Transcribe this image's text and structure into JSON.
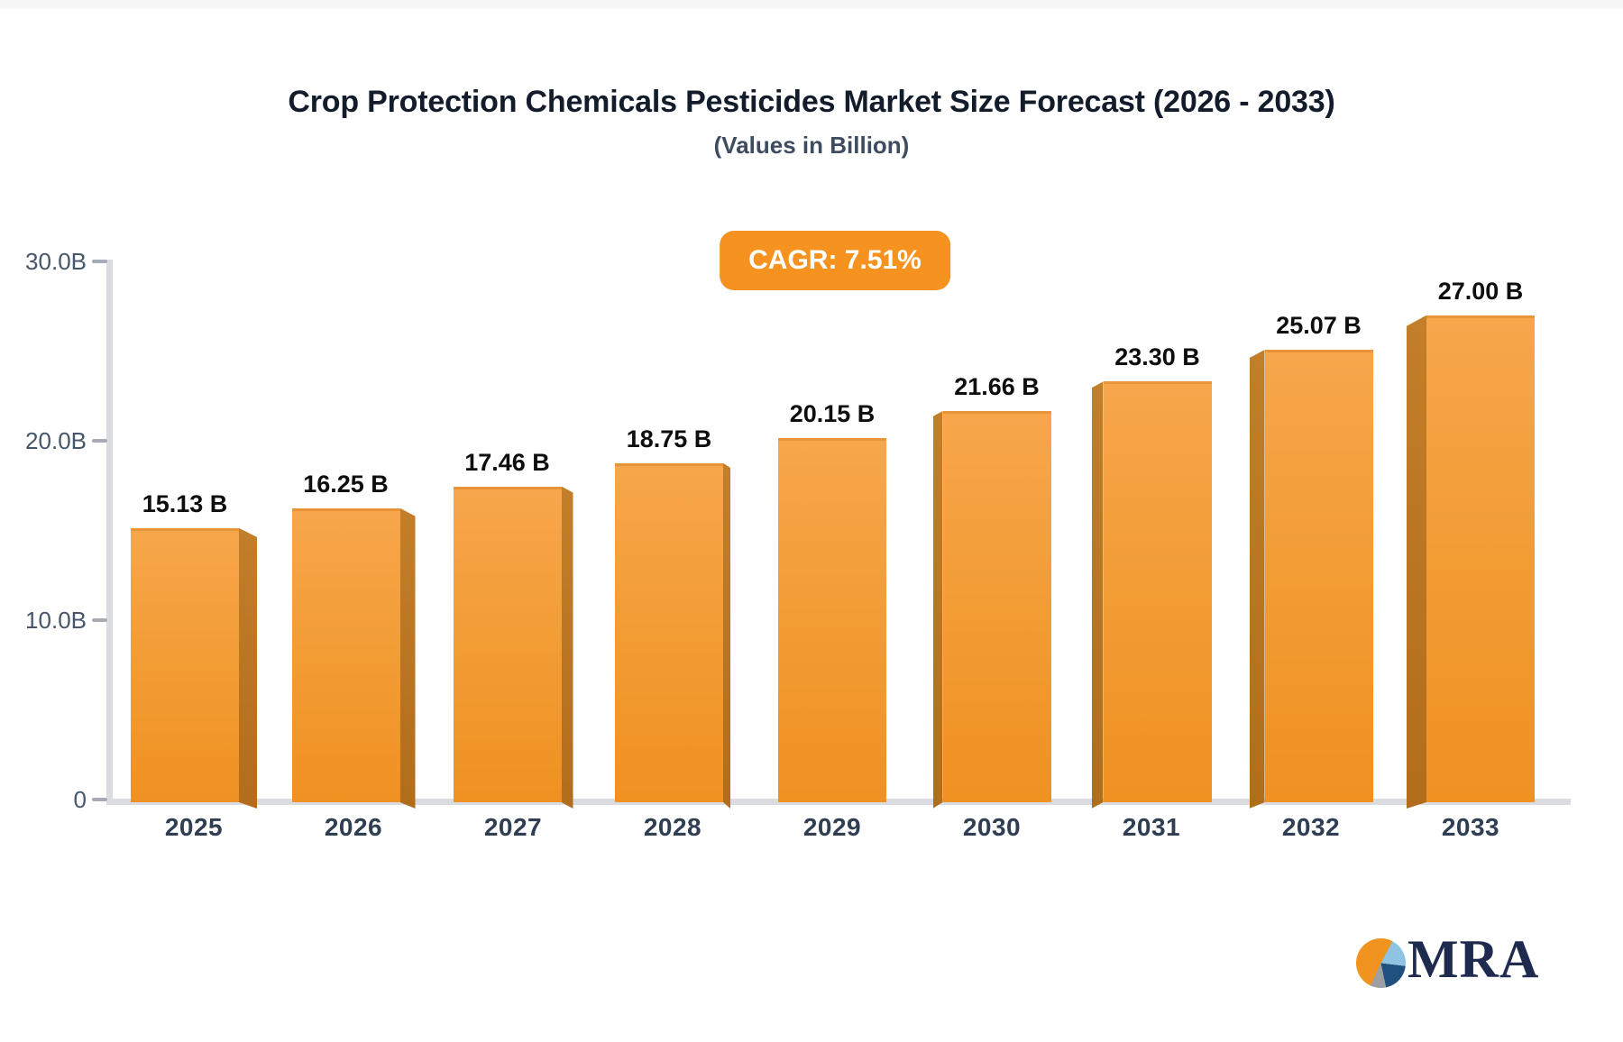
{
  "title": "Crop Protection Chemicals Pesticides Market Size Forecast (2026 - 2033)",
  "subtitle": "(Values in Billion)",
  "badge": "CAGR: 7.51%",
  "chart_data": {
    "type": "bar",
    "title": "Crop Protection Chemicals Pesticides Market Size Forecast (2026 - 2033)",
    "subtitle": "(Values in Billion)",
    "cagr_badge": "CAGR: 7.51%",
    "categories": [
      "2025",
      "2026",
      "2027",
      "2028",
      "2029",
      "2030",
      "2031",
      "2032",
      "2033"
    ],
    "values": [
      15.13,
      16.25,
      17.46,
      18.75,
      20.15,
      21.66,
      23.3,
      25.07,
      27.0
    ],
    "value_labels": [
      "15.13 B",
      "16.25 B",
      "17.46 B",
      "18.75 B",
      "20.15 B",
      "21.66 B",
      "23.30 B",
      "25.07 B",
      "27.00 B"
    ],
    "y_ticks": [
      {
        "label": "30.0B",
        "value": 30
      },
      {
        "label": "20.0B",
        "value": 20
      },
      {
        "label": "10.0B",
        "value": 10
      },
      {
        "label": "0",
        "value": 0
      }
    ],
    "ylim": [
      0,
      30
    ],
    "xlabel": "",
    "ylabel": "",
    "grid": false,
    "legend": "none",
    "bar_style": "3d-orange",
    "colors": {
      "bar_top": "#f7a64c",
      "bar_bottom": "#f09122",
      "bar_side": "#b97120",
      "accent": "#f6921f",
      "axis": "#dbdce0",
      "x_label": "#2f3e53",
      "y_label": "#46566c",
      "value_label": "#0e0e0e"
    }
  },
  "logo": {
    "text": "MRA",
    "navy": "#1e2a4e",
    "pie_orange": "#f0941f",
    "pie_lightblue": "#8fc3e2",
    "pie_darkblue": "#20507e",
    "pie_gray": "#9c9fa3"
  }
}
